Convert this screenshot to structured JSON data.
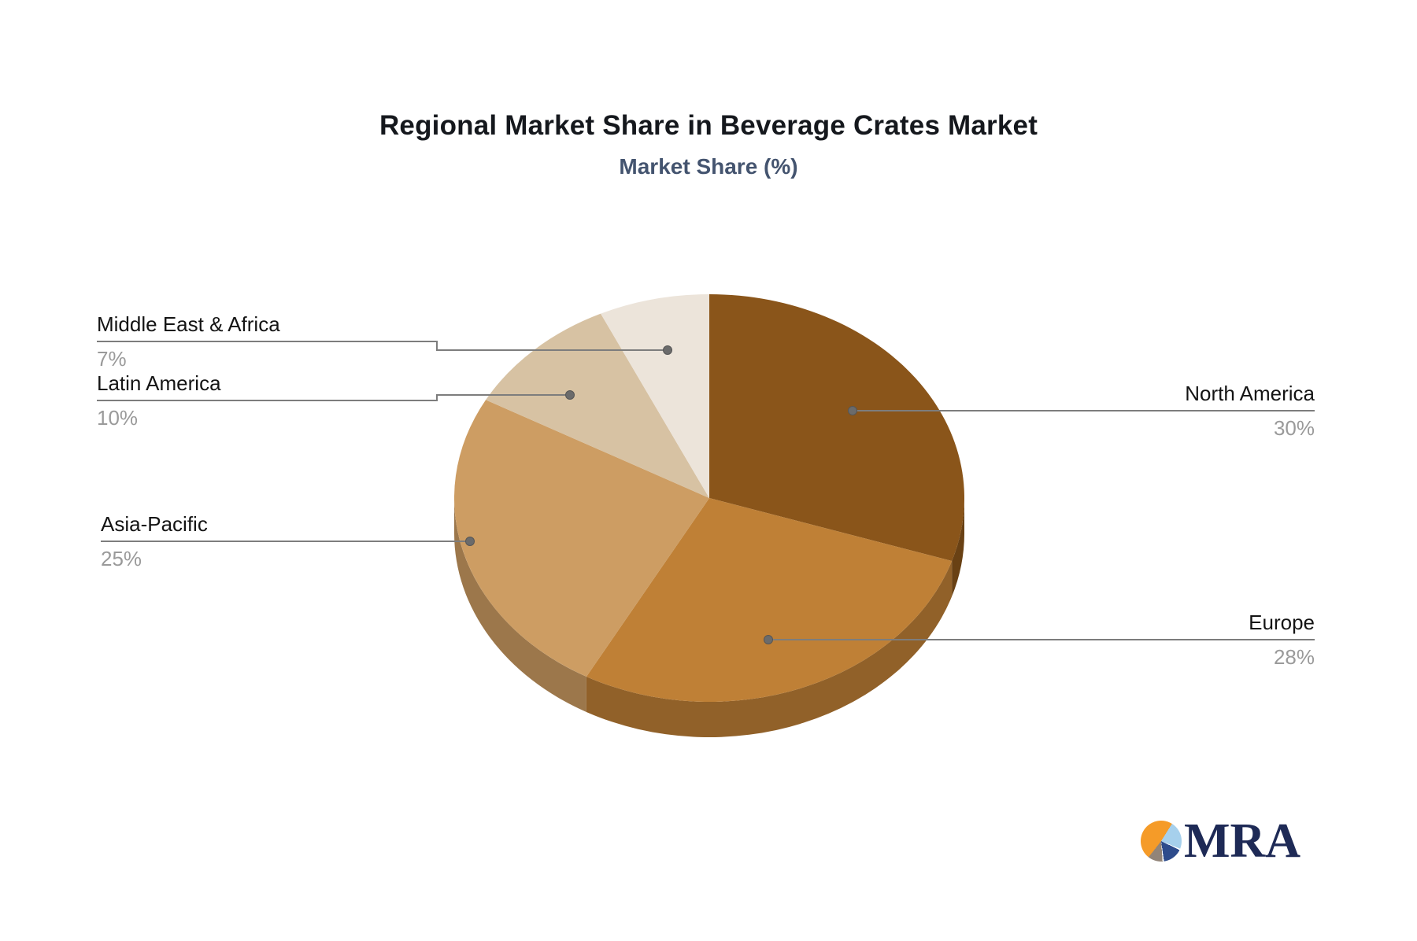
{
  "header": {
    "title": "Regional Market Share in Beverage Crates Market",
    "subtitle": "Market Share (%)"
  },
  "chart_data": {
    "type": "pie",
    "title": "Regional Market Share in Beverage Crates Market",
    "subtitle": "Market Share (%)",
    "effect": "3d",
    "start_angle_deg": 0,
    "direction": "clockwise",
    "legend_position": "none (callout labels with leader lines)",
    "labels": [
      "North America",
      "Europe",
      "Asia-Pacific",
      "Latin America",
      "Middle East & Africa"
    ],
    "values": [
      30,
      28,
      25,
      10,
      7
    ],
    "value_labels": [
      "30%",
      "28%",
      "25%",
      "10%",
      "7%"
    ],
    "colors": [
      "#8a551a",
      "#bf8036",
      "#cd9d63",
      "#d7c2a3",
      "#ece4da"
    ],
    "leader_line_color": "#7d7d7d",
    "label_text_color": "#141414",
    "value_text_color": "#9a9a9a"
  },
  "branding": {
    "logo_text": "MRA"
  }
}
